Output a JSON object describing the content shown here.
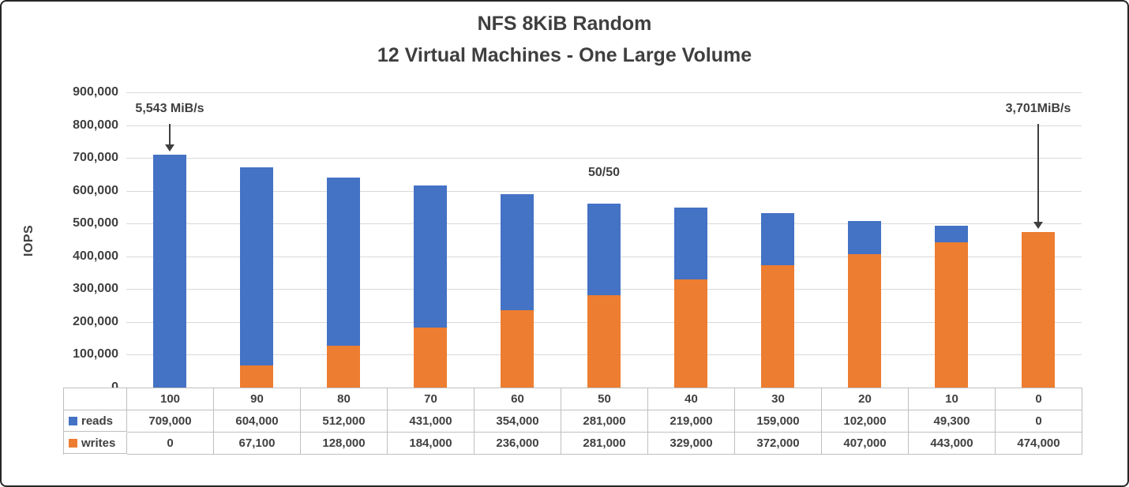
{
  "chart_data": {
    "type": "bar",
    "stacked": true,
    "title": "NFS 8KiB Random",
    "subtitle": "12 Virtual Machines - One Large Volume",
    "ylabel": "IOPS",
    "ylim": [
      0,
      900000
    ],
    "ytick_step": 100000,
    "ytick_labels": [
      "0",
      "100,000",
      "200,000",
      "300,000",
      "400,000",
      "500,000",
      "600,000",
      "700,000",
      "800,000",
      "900,000"
    ],
    "grid": true,
    "legend_position": "table-rows-left",
    "categories": [
      "100",
      "90",
      "80",
      "70",
      "60",
      "50",
      "40",
      "30",
      "20",
      "10",
      "0"
    ],
    "series": [
      {
        "name": "reads",
        "color": "#4472C4",
        "stack_order": "top",
        "values": [
          709000,
          604000,
          512000,
          431000,
          354000,
          281000,
          219000,
          159000,
          102000,
          49300,
          0
        ],
        "labels": [
          "709,000",
          "604,000",
          "512,000",
          "431,000",
          "354,000",
          "281,000",
          "219,000",
          "159,000",
          "102,000",
          "49,300",
          "0"
        ]
      },
      {
        "name": "writes",
        "color": "#ED7D31",
        "stack_order": "bottom",
        "values": [
          0,
          67100,
          128000,
          184000,
          236000,
          281000,
          329000,
          372000,
          407000,
          443000,
          474000
        ],
        "labels": [
          "0",
          "67,100",
          "128,000",
          "184,000",
          "236,000",
          "281,000",
          "329,000",
          "372,000",
          "407,000",
          "443,000",
          "474,000"
        ]
      }
    ],
    "annotations": [
      {
        "text": "5,543 MiB/s",
        "target_category": "100",
        "arrow": true
      },
      {
        "text": "50/50",
        "target_category": "50",
        "arrow": false
      },
      {
        "text": "3,701MiB/s",
        "target_category": "0",
        "arrow": true
      }
    ]
  },
  "table": {
    "corner_label": ""
  },
  "colors": {
    "reads": "#4472C4",
    "writes": "#ED7D31",
    "gridline": "#D9D9D9",
    "table_border": "#BFBFBF",
    "text": "#404040"
  }
}
